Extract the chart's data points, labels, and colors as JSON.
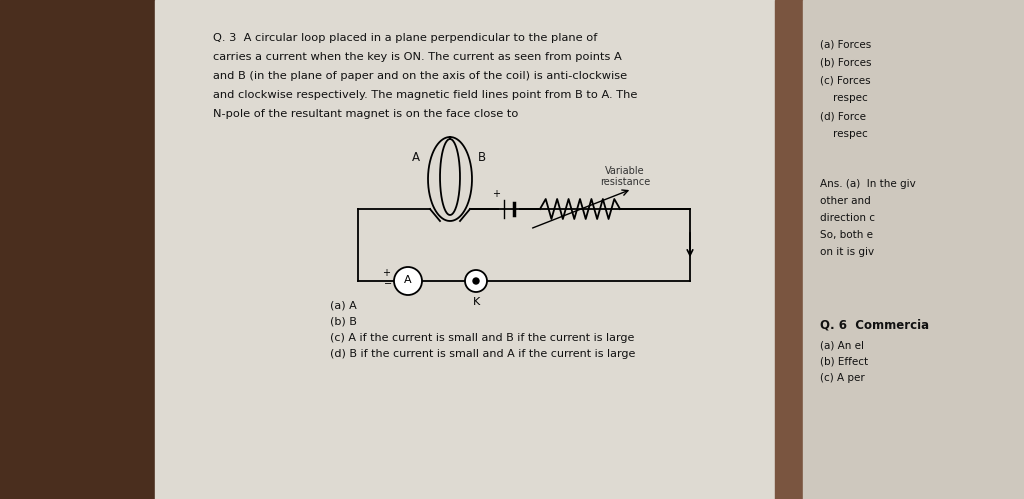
{
  "bg_left_color": "#5a3a28",
  "bg_right_color": "#8a6a5a",
  "page_color": "#e8e4dc",
  "right_page_color": "#d8d0c8",
  "spine_color": "#7a5040",
  "question_lines": [
    "Q. 3  A circular loop placed in a plane perpendicular to the plane of",
    "carries a current when the key is ON. The current as seen from points A",
    "and B (in the plane of paper and on the axis of the coil) is anti-clockwise",
    "and clockwise respectively. The magnetic field lines point from B to A. The",
    "N-pole of the resultant magnet is on the face close to"
  ],
  "options": [
    "(a) A",
    "(b) B",
    "(c) A if the current is small and B if the current is large",
    "(d) B if the current is small and A if the current is large"
  ],
  "rp_options": [
    "(a) Forces",
    "(b) Forces",
    "(c) Forces",
    "    respec",
    "(d) Force",
    "    respec"
  ],
  "ans_lines": [
    "Ans. (a)  In the giv",
    "other and",
    "direction c",
    "So, both e",
    "on it is giv"
  ],
  "q6_line": "Q. 6  Commercia",
  "q6_opts": [
    "(a) An el",
    "(b) Effect",
    "(c) A per"
  ]
}
